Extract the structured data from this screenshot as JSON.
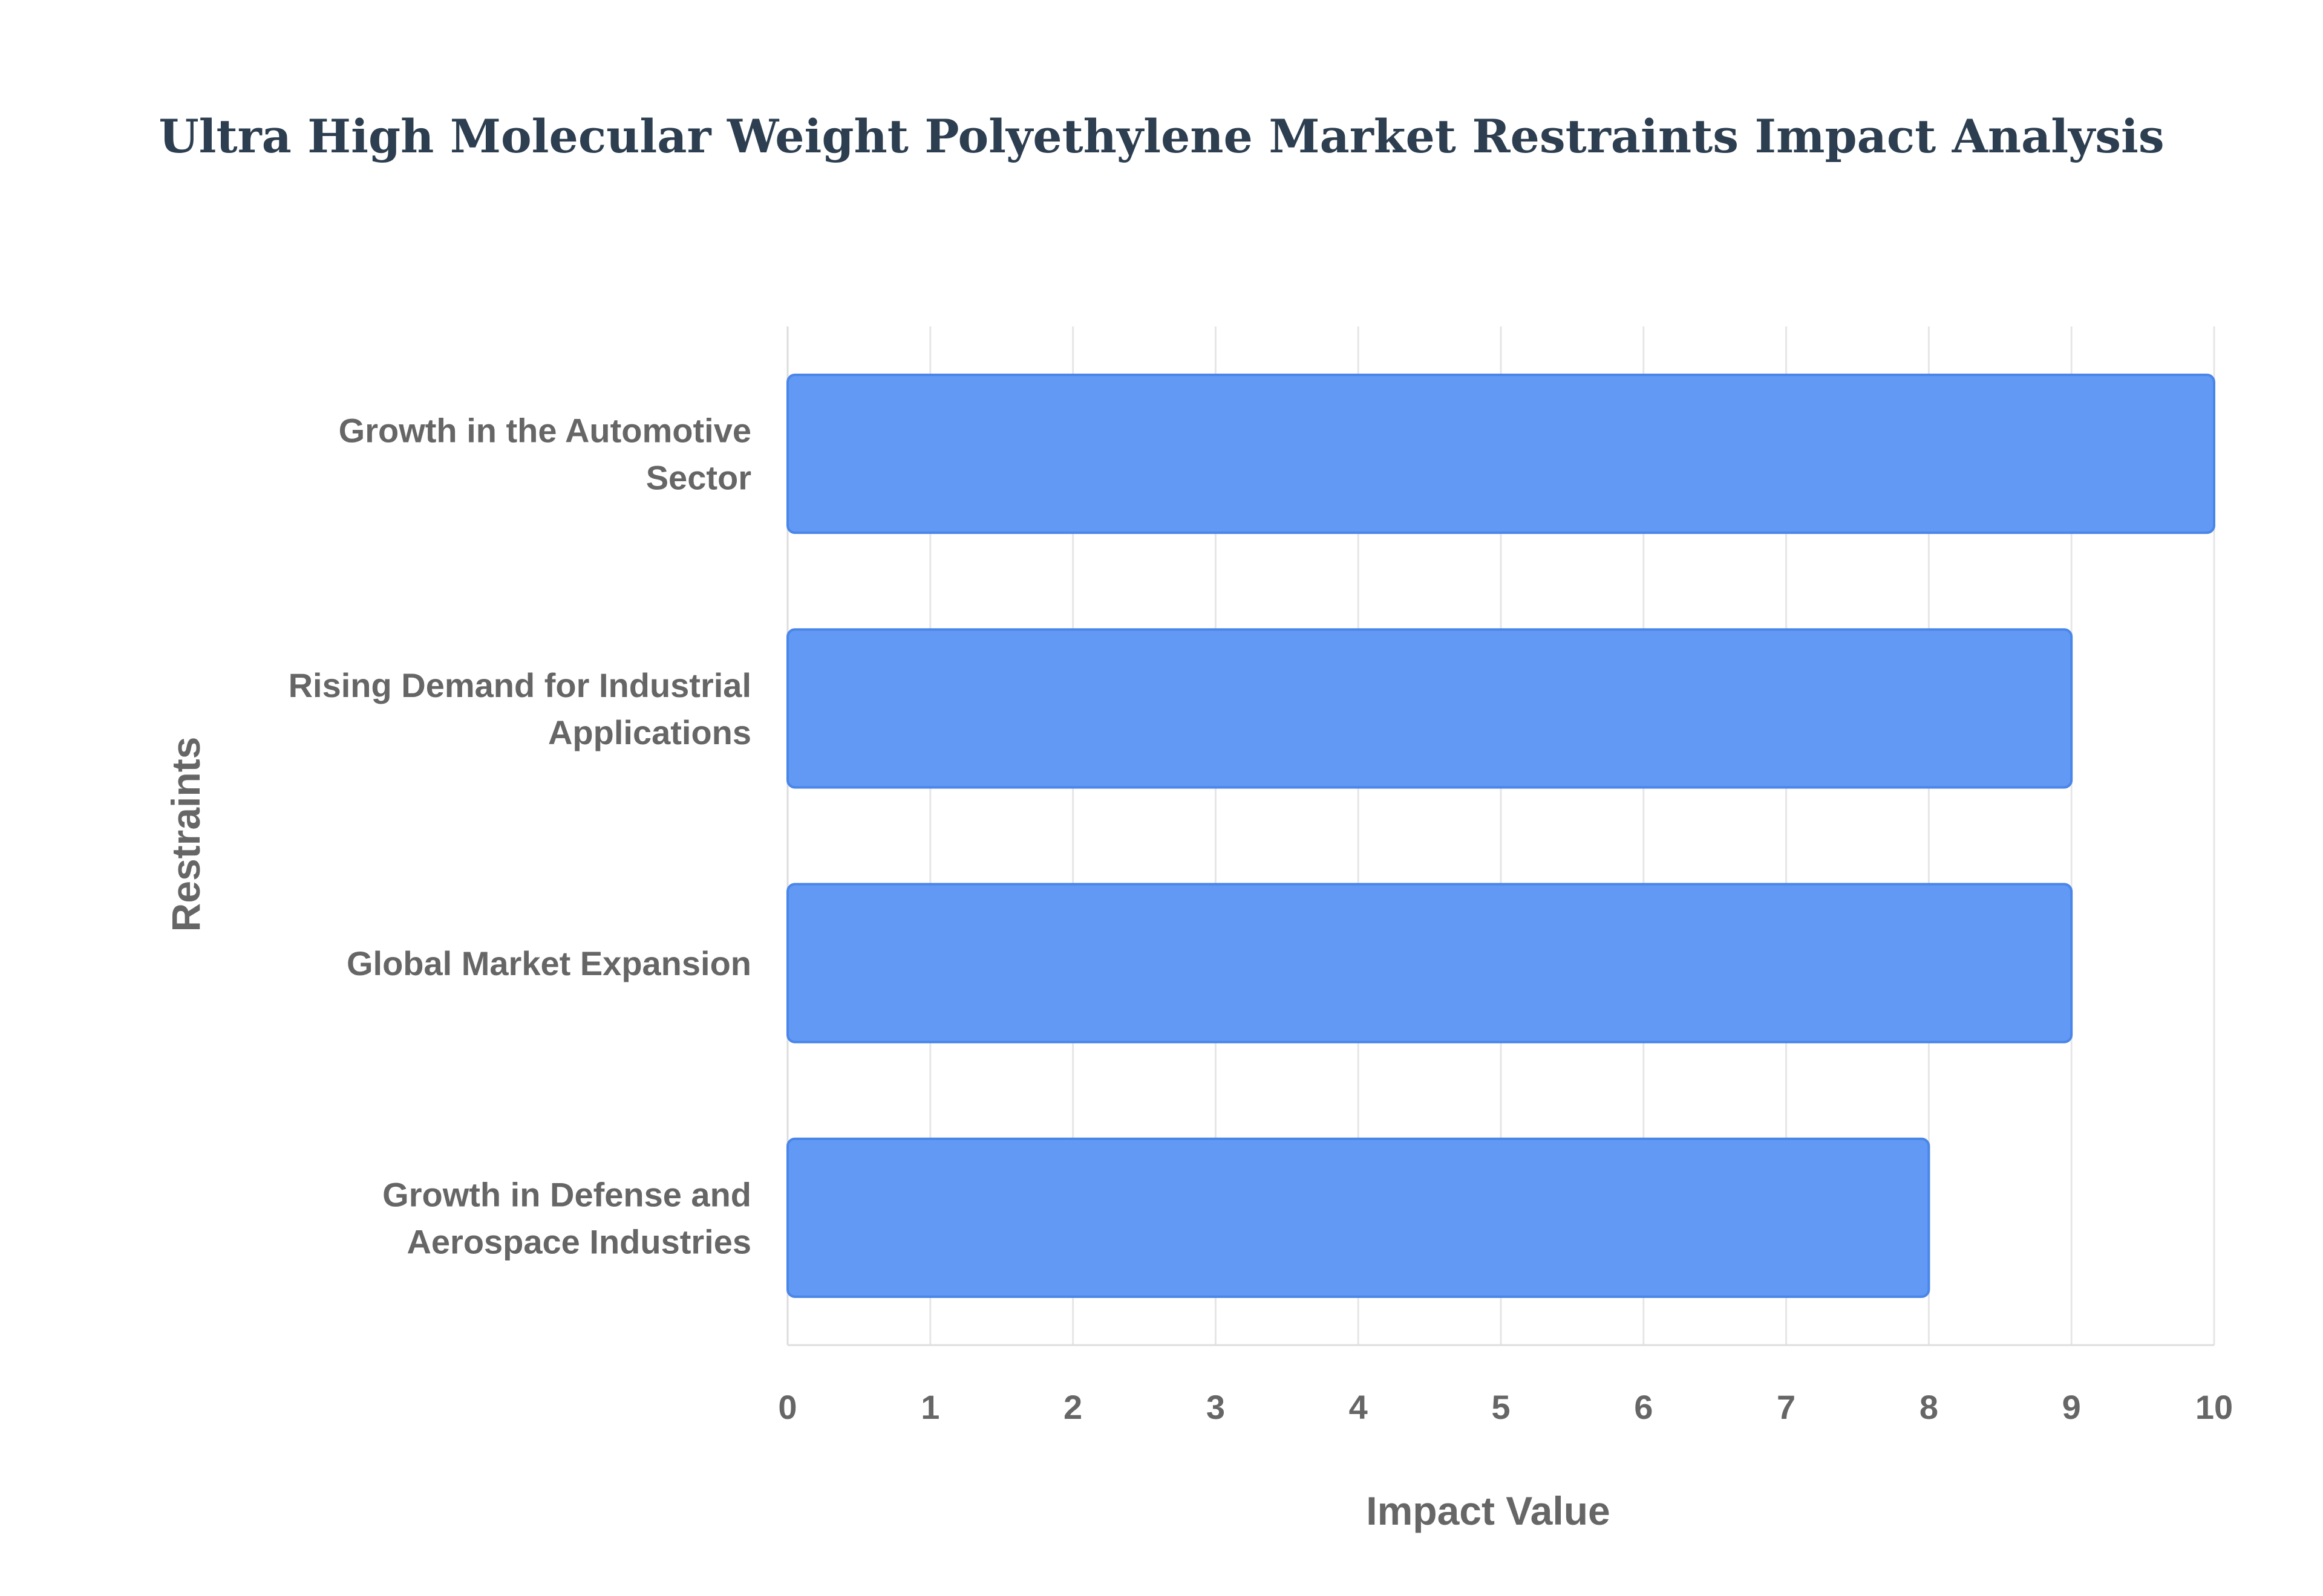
{
  "chart_data": {
    "type": "bar",
    "orientation": "horizontal",
    "title": "Ultra High Molecular Weight Polyethylene Market Restraints Impact Analysis",
    "xlabel": "Impact Value",
    "ylabel": "Restraints",
    "xlim": [
      0,
      10
    ],
    "xticks": [
      "0",
      "1",
      "2",
      "3",
      "4",
      "5",
      "6",
      "7",
      "8",
      "9",
      "10"
    ],
    "grid": true,
    "legend": "none",
    "bar_color": "#6199f5",
    "bar_border_color": "#4a86e8",
    "categories": [
      [
        "Growth in the Automotive",
        "Sector"
      ],
      [
        "Rising Demand for Industrial",
        "Applications"
      ],
      [
        "Global Market Expansion"
      ],
      [
        "Growth in Defense and",
        "Aerospace Industries"
      ]
    ],
    "values": [
      10,
      9,
      9,
      8
    ]
  }
}
